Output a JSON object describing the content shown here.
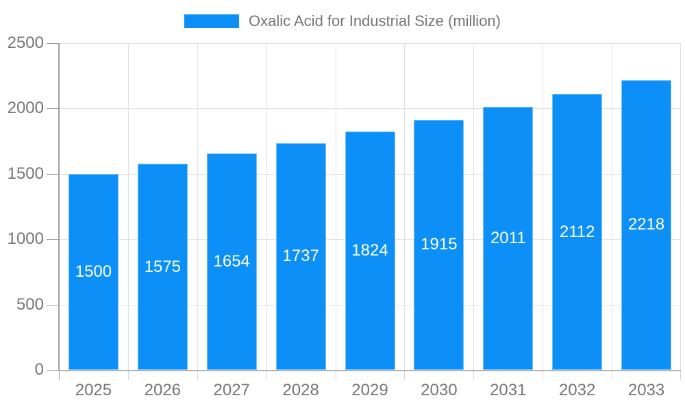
{
  "legend": {
    "label": "Oxalic Acid for Industrial Size (million)"
  },
  "chart_data": {
    "type": "bar",
    "title": "Oxalic Acid for Industrial Size (million)",
    "categories": [
      "2025",
      "2026",
      "2027",
      "2028",
      "2029",
      "2030",
      "2031",
      "2032",
      "2033"
    ],
    "values": [
      1500,
      1575,
      1654,
      1737,
      1824,
      1915,
      2011,
      2112,
      2218
    ],
    "series": [
      {
        "name": "Oxalic Acid for Industrial Size (million)",
        "values": [
          1500,
          1575,
          1654,
          1737,
          1824,
          1915,
          2011,
          2112,
          2218
        ]
      }
    ],
    "xlabel": "",
    "ylabel": "",
    "ylim": [
      0,
      2500
    ],
    "yticks": [
      0,
      500,
      1000,
      1500,
      2000,
      2500
    ],
    "grid": true,
    "legend_position": "top-center",
    "value_label_position": "inside-center",
    "colors": {
      "bar": "#0C90F8",
      "value_label": "#ffffff",
      "axis_text": "#757575",
      "legend_text": "#757575",
      "gridline": "#e0e0e0",
      "y_axis_line": "#9e9e9e",
      "x_axis_line": "#b3b3b3",
      "background": "#ffffff"
    }
  }
}
